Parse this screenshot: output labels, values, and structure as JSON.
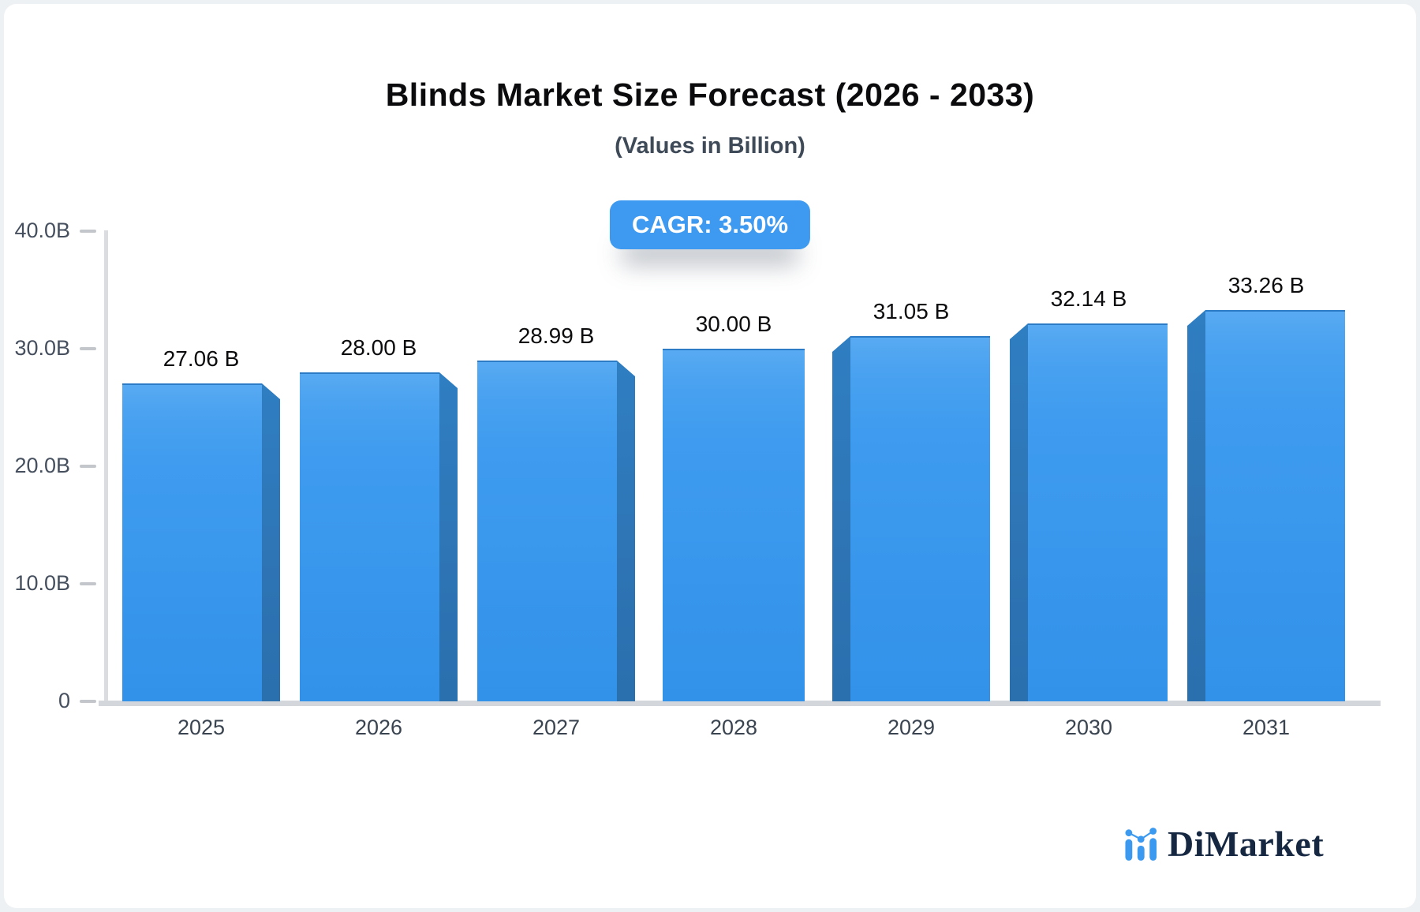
{
  "chart_data": {
    "type": "bar",
    "title": "Blinds Market Size Forecast (2026 - 2033)",
    "subtitle": "(Values in Billion)",
    "cagr_label": "CAGR: 3.50%",
    "categories": [
      "2025",
      "2026",
      "2027",
      "2028",
      "2029",
      "2030",
      "2031"
    ],
    "values": [
      27.06,
      28.0,
      28.99,
      30.0,
      31.05,
      32.14,
      33.26
    ],
    "value_labels": [
      "27.06 B",
      "28.00 B",
      "28.99 B",
      "30.00 B",
      "31.05 B",
      "32.14 B",
      "33.26 B"
    ],
    "yticks": [
      {
        "label": "0",
        "value": 0
      },
      {
        "label": "10.0B",
        "value": 10
      },
      {
        "label": "20.0B",
        "value": 20
      },
      {
        "label": "30.0B",
        "value": 30
      },
      {
        "label": "40.0B",
        "value": 40
      }
    ],
    "ylim": [
      0,
      40
    ],
    "grid": false,
    "legend": false,
    "bar_style": "3d-perspective-toward-center",
    "colors": {
      "bar_face": "#3e9bef",
      "bar_face_light": "#58aaf2",
      "bar_side": "#2e75b5",
      "badge_bg": "#3e9af0",
      "title": "#0b0b0d",
      "subtitle": "#3f4a58",
      "axis_label": "#454f5e",
      "logo_text": "#152741",
      "logo_icon": "#3b9af0"
    }
  },
  "logo": {
    "text": "DiMarket"
  }
}
